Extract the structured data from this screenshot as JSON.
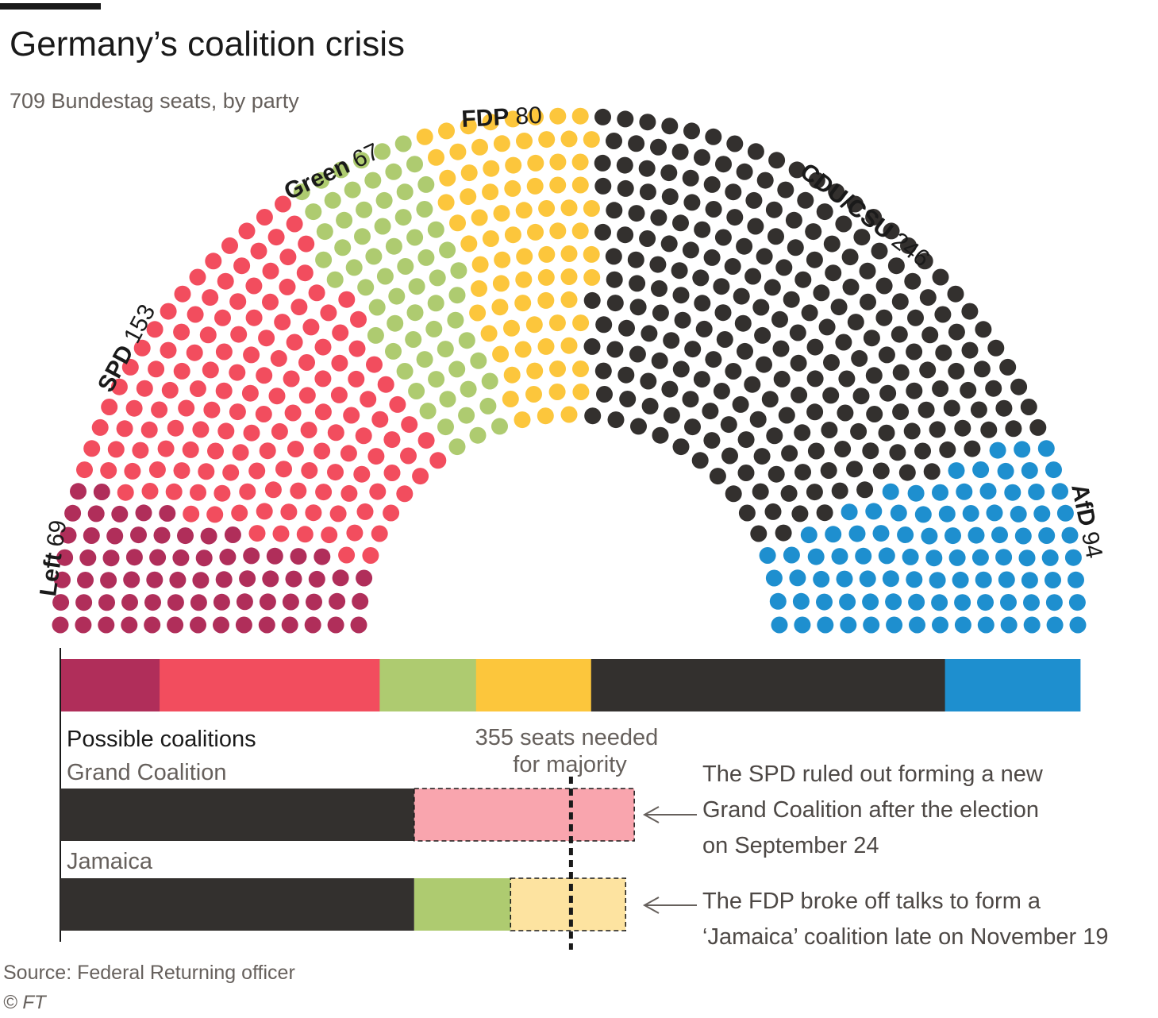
{
  "header": {
    "title": "Germany’s coalition crisis",
    "subtitle": "709 Bundestag seats, by party"
  },
  "chart_data": [
    {
      "type": "parliament",
      "title": "709 Bundestag seats, by party",
      "total_seats": 709,
      "parties": [
        {
          "name": "Left",
          "seats": 69,
          "color": "#b02e5a"
        },
        {
          "name": "SPD",
          "seats": 153,
          "color": "#f24d5e"
        },
        {
          "name": "Green",
          "seats": 67,
          "color": "#aecb70"
        },
        {
          "name": "FDP",
          "seats": 80,
          "color": "#fcc63c"
        },
        {
          "name": "CDU/CSU",
          "seats": 246,
          "color": "#33302e"
        },
        {
          "name": "AfD",
          "seats": 94,
          "color": "#1e8fcf"
        }
      ]
    },
    {
      "type": "bar",
      "title": "Possible coalitions",
      "majority_seats": 355,
      "majority_label": [
        "355 seats needed",
        "for majority"
      ],
      "coalitions": [
        {
          "name": "Grand Coalition",
          "segments": [
            {
              "party": "CDU/CSU",
              "seats": 246,
              "color": "#33302e",
              "ruled_out": false
            },
            {
              "party": "SPD",
              "seats": 153,
              "color": "#f9a5ae",
              "ruled_out": true
            }
          ],
          "note": [
            "The SPD ruled out forming a new",
            "Grand Coalition after the election",
            "on September 24"
          ]
        },
        {
          "name": "Jamaica",
          "segments": [
            {
              "party": "CDU/CSU",
              "seats": 246,
              "color": "#33302e",
              "ruled_out": false
            },
            {
              "party": "Green",
              "seats": 67,
              "color": "#aecb70",
              "ruled_out": false
            },
            {
              "party": "FDP",
              "seats": 80,
              "color": "#fde3a0",
              "ruled_out": true
            }
          ],
          "note": [
            "The FDP broke off talks to form a",
            "‘Jamaica’ coalition late on November 19"
          ]
        }
      ]
    }
  ],
  "footer": {
    "source": "Source: Federal Returning officer",
    "credit": "© FT"
  }
}
